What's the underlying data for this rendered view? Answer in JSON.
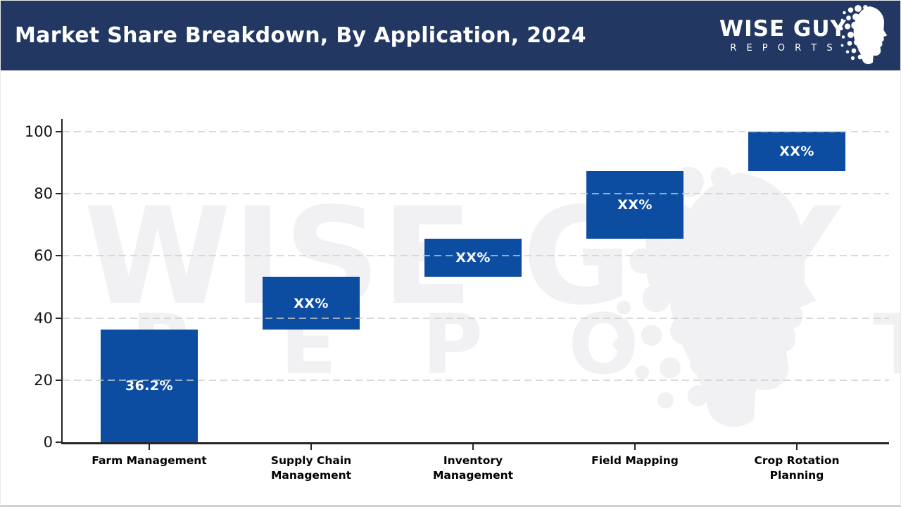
{
  "header": {
    "title": "Market Share Breakdown, By Application, 2024",
    "logo": {
      "brand": "WISE GUY",
      "sub": "R E P O R T S"
    }
  },
  "watermark": {
    "line1": "WISE GUY",
    "line2": "R E P O R T S"
  },
  "colors": {
    "header_bg": "#223862",
    "bar": "#0C4DA2",
    "bar_label": "#FFFFFF",
    "axis": "#262626",
    "tick_text": "#111111",
    "category_text": "#000000",
    "watermark": "#F1F1F3"
  },
  "chart_data": {
    "type": "bar",
    "subtype": "waterfall",
    "title": "Market Share Breakdown, By Application, 2024",
    "xlabel": "",
    "ylabel": "",
    "ylim": [
      0,
      104
    ],
    "grid": "horizontal-dashed",
    "legend": null,
    "yticks": [
      0,
      20,
      40,
      60,
      80,
      100
    ],
    "categories": [
      "Farm Management",
      "Supply Chain Management",
      "Inventory Management",
      "Field Mapping",
      "Crop Rotation Planning"
    ],
    "bars": [
      {
        "category": "Farm Management",
        "category_display": "Farm Management",
        "start": 0,
        "end": 36.2,
        "label": "36.2%"
      },
      {
        "category": "Supply Chain Management",
        "category_display": "Supply Chain\nManagement",
        "start": 36.2,
        "end": 53.2,
        "label": "XX%"
      },
      {
        "category": "Inventory Management",
        "category_display": "Inventory\nManagement",
        "start": 53.2,
        "end": 65.6,
        "label": "XX%"
      },
      {
        "category": "Field Mapping",
        "category_display": "Field Mapping",
        "start": 65.6,
        "end": 87.2,
        "label": "XX%"
      },
      {
        "category": "Crop Rotation Planning",
        "category_display": "Crop Rotation\nPlanning",
        "start": 87.2,
        "end": 100,
        "label": "XX%"
      }
    ]
  }
}
